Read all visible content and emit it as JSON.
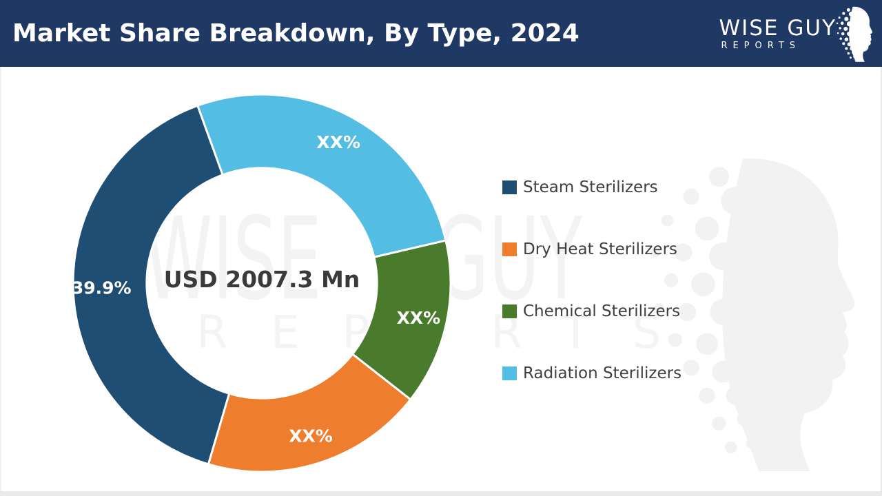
{
  "header": {
    "title": "Market Share Breakdown, By Type, 2024",
    "logo_line1": "WISE GUY",
    "logo_line2": "REPORTS",
    "background_color": "#1f3864"
  },
  "watermark": {
    "line1": "WISE GUY",
    "line2": "REPORTS"
  },
  "chart_data": {
    "type": "pie",
    "subtype": "donut",
    "title": "Market Share Breakdown, By Type, 2024",
    "center_label": "USD 2007.3 Mn",
    "start_angle_deg": -19.9,
    "direction": "clockwise",
    "donut_hole_ratio": 0.61,
    "legend_position": "right",
    "segments": [
      {
        "name": "Radiation Sterilizers",
        "label": "XX%",
        "value_pct": 26.9,
        "color": "#54bde3"
      },
      {
        "name": "Chemical Sterilizers",
        "label": "XX%",
        "value_pct": 14.2,
        "color": "#4a7a2c"
      },
      {
        "name": "Dry Heat Sterilizers",
        "label": "XX%",
        "value_pct": 19.0,
        "color": "#ee7d2e"
      },
      {
        "name": "Steam Sterilizers",
        "label": "39.9%",
        "value_pct": 39.9,
        "color": "#1f4e74"
      }
    ],
    "legend": [
      {
        "label": "Steam Sterilizers",
        "color": "#1f4e74"
      },
      {
        "label": "Dry Heat Sterilizers",
        "color": "#ee7d2e"
      },
      {
        "label": "Chemical Sterilizers",
        "color": "#4a7a2c"
      },
      {
        "label": "Radiation Sterilizers",
        "color": "#54bde3"
      }
    ]
  }
}
